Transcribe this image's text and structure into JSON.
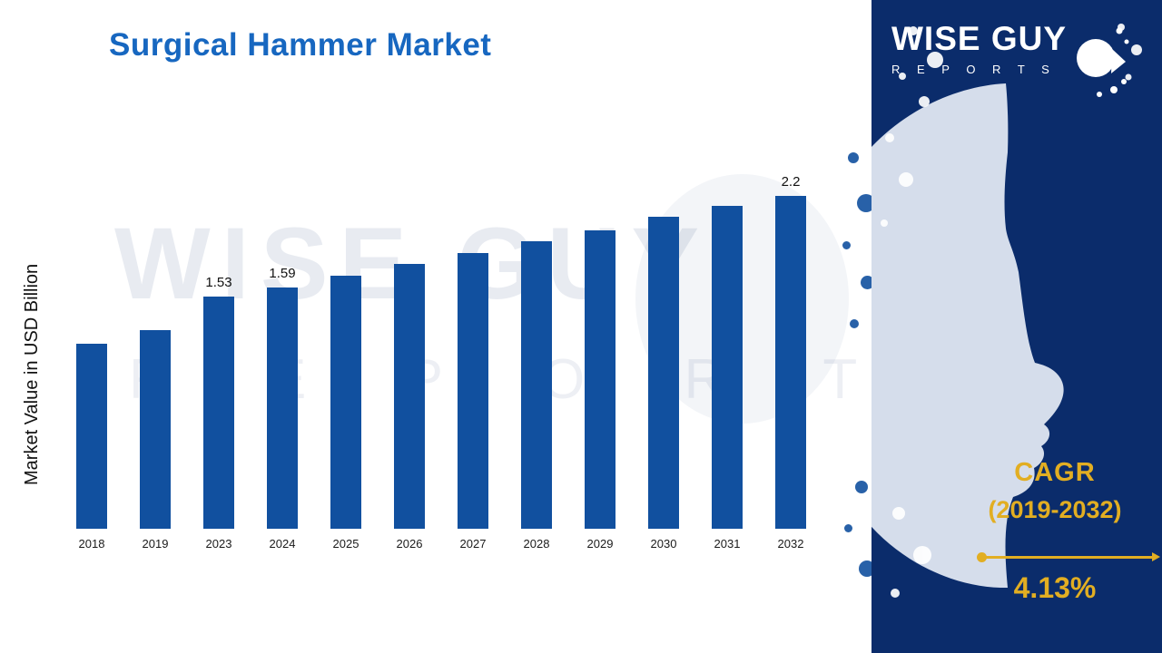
{
  "title": "Surgical Hammer Market",
  "y_axis_label": "Market Value in USD Billion",
  "watermark": {
    "line1": "WISE GUY",
    "line2": "R E P O R T S"
  },
  "logo": {
    "name": "WISE GUY",
    "tagline": "R E P O R T S"
  },
  "side_panel": {
    "cagr_label": "CAGR",
    "cagr_period": "(2019-2032)",
    "cagr_value": "4.13%"
  },
  "colors": {
    "bar": "#11509f",
    "title_blue": "#1767c0",
    "panel_navy": "#0b2c6b",
    "accent_gold": "#e2ae22",
    "face_light": "#d5ddeb"
  },
  "chart_data": {
    "type": "bar",
    "title": "Surgical Hammer Market",
    "xlabel": "",
    "ylabel": "Market Value in USD Billion",
    "categories": [
      "2018",
      "2019",
      "2023",
      "2024",
      "2025",
      "2026",
      "2027",
      "2028",
      "2029",
      "2030",
      "2031",
      "2032"
    ],
    "values": [
      1.22,
      1.31,
      1.53,
      1.59,
      1.67,
      1.75,
      1.82,
      1.9,
      1.97,
      2.06,
      2.13,
      2.2
    ],
    "data_labels": [
      "",
      "",
      "1.53",
      "1.59",
      "",
      "",
      "",
      "",
      "",
      "",
      "",
      "2.2"
    ],
    "ylim": [
      0,
      2.4
    ],
    "grid": false,
    "legend": "none",
    "bar_color": "#11509f"
  }
}
